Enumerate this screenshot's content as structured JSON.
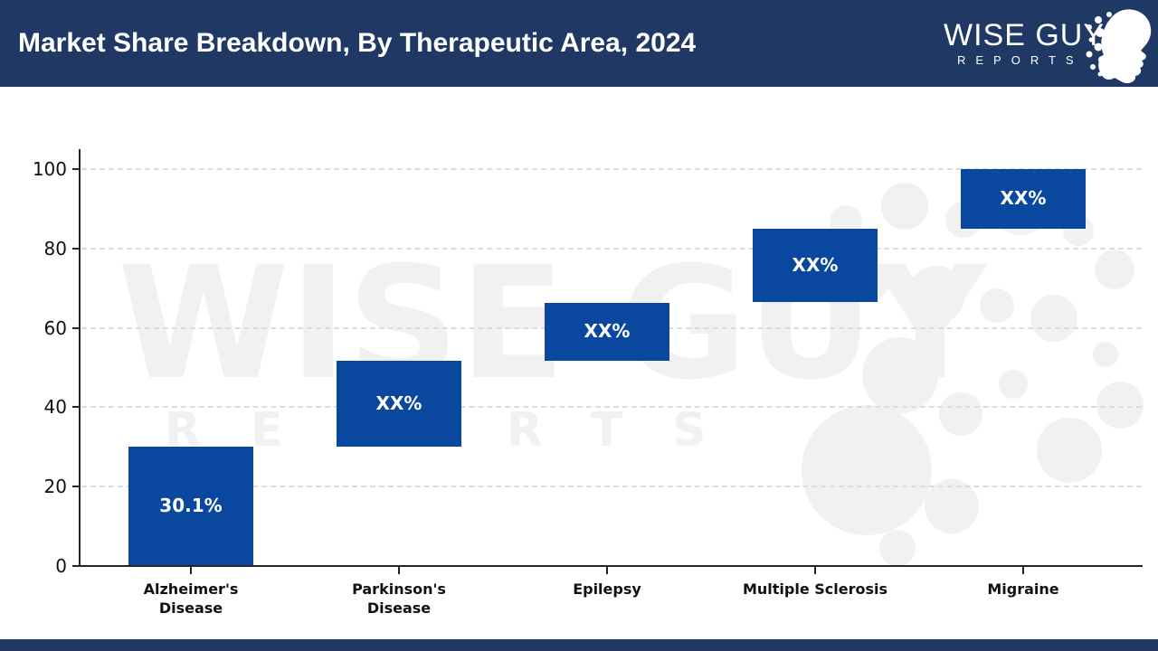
{
  "header": {
    "title": "Market Share Breakdown, By Therapeutic Area, 2024",
    "logo": {
      "line1": "WISE GUY",
      "line2": "REPORTS"
    }
  },
  "watermark": {
    "line1": "WISE GUY",
    "line2": "REPORTS"
  },
  "colors": {
    "header_bg": "#203864",
    "bar": "#0a48a0",
    "bar_label": "#ffffff",
    "grid": "#dcdcdc",
    "axis": "#262626",
    "watermark": "#f1f1f1"
  },
  "chart_data": {
    "type": "bar",
    "subtype": "floating-waterfall",
    "title": "Market Share Breakdown, By Therapeutic Area, 2024",
    "categories": [
      "Alzheimer's\nDisease",
      "Parkinson's\nDisease",
      "Epilepsy",
      "Multiple Sclerosis",
      "Migraine"
    ],
    "bars": [
      {
        "category": "Alzheimer's Disease",
        "label": "30.1%",
        "start": 0,
        "end": 30.1
      },
      {
        "category": "Parkinson's Disease",
        "label": "XX%",
        "start": 30.1,
        "end": 51.6
      },
      {
        "category": "Epilepsy",
        "label": "XX%",
        "start": 51.6,
        "end": 66.4
      },
      {
        "category": "Multiple Sclerosis",
        "label": "XX%",
        "start": 66.4,
        "end": 84.9
      },
      {
        "category": "Migraine",
        "label": "XX%",
        "start": 84.9,
        "end": 100
      }
    ],
    "yticks": [
      0,
      20,
      40,
      60,
      80,
      100
    ],
    "ylim": [
      0,
      105
    ],
    "xlabel": "",
    "ylabel": "",
    "grid": "horizontal-dashed",
    "legend": "none"
  }
}
